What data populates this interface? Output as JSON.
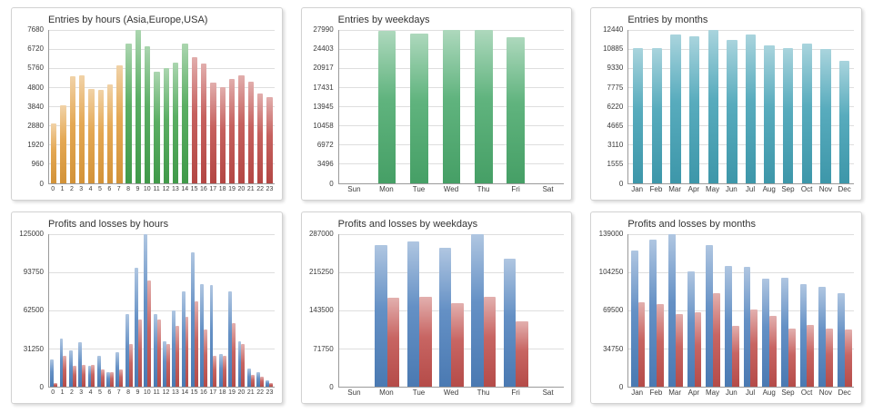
{
  "colors": {
    "axis_line": "#9a9a9a",
    "gridline": "#dedede",
    "hours_segment_orange": "#E09C3C",
    "hours_segment_green": "#44A34E",
    "hours_segment_red": "#BE4B48",
    "weekday_green": "#4AA96C",
    "month_teal": "#41A0B4",
    "profit_blue": "#4F81BD",
    "loss_red": "#C0504D"
  },
  "chart_data": [
    {
      "type": "bar",
      "title": "Entries by hours (Asia,Europe,USA)",
      "categories": [
        "0",
        "1",
        "2",
        "3",
        "4",
        "5",
        "6",
        "7",
        "8",
        "9",
        "10",
        "11",
        "12",
        "13",
        "14",
        "15",
        "16",
        "17",
        "18",
        "19",
        "20",
        "21",
        "22",
        "23"
      ],
      "values": [
        3000,
        3900,
        5350,
        5400,
        4700,
        4650,
        4950,
        5900,
        7000,
        7680,
        6850,
        5600,
        5750,
        6050,
        7000,
        6300,
        6000,
        5050,
        4800,
        5200,
        5400,
        5100,
        4500,
        4300
      ],
      "bar_colors": [
        "#E09C3C",
        "#E09C3C",
        "#E09C3C",
        "#E09C3C",
        "#E09C3C",
        "#E09C3C",
        "#E09C3C",
        "#E09C3C",
        "#44A34E",
        "#44A34E",
        "#44A34E",
        "#44A34E",
        "#44A34E",
        "#44A34E",
        "#44A34E",
        "#BE4B48",
        "#BE4B48",
        "#BE4B48",
        "#BE4B48",
        "#BE4B48",
        "#BE4B48",
        "#BE4B48",
        "#BE4B48",
        "#BE4B48"
      ],
      "ylim": [
        0,
        7680
      ],
      "yticks": [
        7680,
        6720,
        5760,
        4800,
        3840,
        2880,
        1920,
        960,
        0
      ],
      "grid": true,
      "legend": false
    },
    {
      "type": "bar",
      "title": "Entries by weekdays",
      "categories": [
        "Sun",
        "Mon",
        "Tue",
        "Wed",
        "Thu",
        "Fri",
        "Sat"
      ],
      "values": [
        0,
        27900,
        27400,
        27950,
        27950,
        26600,
        0
      ],
      "color": "#4AA96C",
      "ylim": [
        0,
        27990
      ],
      "yticks": [
        27990,
        24403,
        20917,
        17431,
        13945,
        10458,
        6972,
        3496,
        0
      ],
      "grid": true,
      "legend": false
    },
    {
      "type": "bar",
      "title": "Entries by months",
      "categories": [
        "Jan",
        "Feb",
        "Mar",
        "Apr",
        "May",
        "Jun",
        "Jul",
        "Aug",
        "Sep",
        "Oct",
        "Nov",
        "Dec"
      ],
      "values": [
        11000,
        11000,
        12100,
        11900,
        12440,
        11600,
        12100,
        11200,
        11000,
        11300,
        10885,
        9950
      ],
      "color": "#41A0B4",
      "ylim": [
        0,
        12440
      ],
      "yticks": [
        12440,
        10885,
        9330,
        7775,
        6220,
        4665,
        3110,
        1555,
        0
      ],
      "grid": true,
      "legend": false
    },
    {
      "type": "bar",
      "title": "Profits and losses by hours",
      "categories": [
        "0",
        "1",
        "2",
        "3",
        "4",
        "5",
        "6",
        "7",
        "8",
        "9",
        "10",
        "11",
        "12",
        "13",
        "14",
        "15",
        "16",
        "17",
        "18",
        "19",
        "20",
        "21",
        "22",
        "23"
      ],
      "series": [
        {
          "name": "profits",
          "color": "#4F81BD",
          "values": [
            22000,
            39000,
            30000,
            36000,
            17000,
            25000,
            12000,
            28000,
            59000,
            97000,
            125000,
            59000,
            37000,
            62000,
            78000,
            110000,
            84000,
            83000,
            27000,
            78000,
            37000,
            15000,
            12000,
            5000
          ]
        },
        {
          "name": "losses",
          "color": "#C0504D",
          "values": [
            3000,
            25000,
            17000,
            18000,
            18000,
            14000,
            12000,
            14000,
            35000,
            55000,
            87000,
            55000,
            35000,
            50000,
            57000,
            70000,
            47000,
            25000,
            25000,
            52000,
            35000,
            10000,
            8000,
            3000
          ]
        }
      ],
      "ylim": [
        0,
        125000
      ],
      "yticks": [
        125000,
        93750,
        62500,
        31250,
        0
      ],
      "grid": true,
      "legend": false
    },
    {
      "type": "bar",
      "title": "Profits and losses by weekdays",
      "categories": [
        "Sun",
        "Mon",
        "Tue",
        "Wed",
        "Thu",
        "Fri",
        "Sat"
      ],
      "series": [
        {
          "name": "profits",
          "color": "#4F81BD",
          "values": [
            0,
            265000,
            272000,
            261000,
            287000,
            240000,
            0
          ]
        },
        {
          "name": "losses",
          "color": "#C0504D",
          "values": [
            0,
            167000,
            168000,
            157000,
            168000,
            123000,
            0
          ]
        }
      ],
      "ylim": [
        0,
        287000
      ],
      "yticks": [
        287000,
        215250,
        143500,
        71750,
        0
      ],
      "grid": true,
      "legend": false
    },
    {
      "type": "bar",
      "title": "Profits and losses by months",
      "categories": [
        "Jan",
        "Feb",
        "Mar",
        "Apr",
        "May",
        "Jun",
        "Jul",
        "Aug",
        "Sep",
        "Oct",
        "Nov",
        "Dec"
      ],
      "series": [
        {
          "name": "profits",
          "color": "#4F81BD",
          "values": [
            124000,
            134000,
            139000,
            105000,
            129000,
            110000,
            109000,
            98000,
            99000,
            93000,
            91000,
            85000
          ]
        },
        {
          "name": "losses",
          "color": "#C0504D",
          "values": [
            77000,
            75000,
            66000,
            68000,
            85000,
            55000,
            70000,
            64000,
            53000,
            56000,
            53000,
            52000
          ]
        }
      ],
      "ylim": [
        0,
        139000
      ],
      "yticks": [
        139000,
        104250,
        69500,
        34750,
        0
      ],
      "grid": true,
      "legend": false
    }
  ]
}
